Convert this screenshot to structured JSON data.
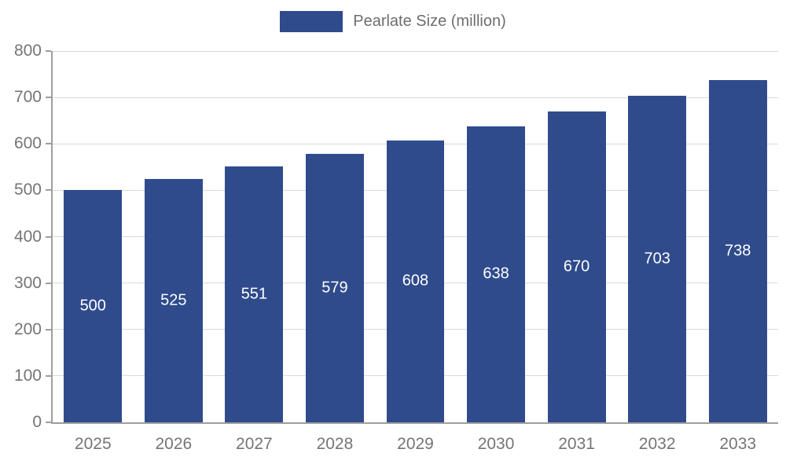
{
  "legend": {
    "label": "Pearlate Size (million)"
  },
  "chart_data": {
    "type": "bar",
    "title": "Pearlate Size (million)",
    "categories": [
      "2025",
      "2026",
      "2027",
      "2028",
      "2029",
      "2030",
      "2031",
      "2032",
      "2033"
    ],
    "values": [
      500,
      525,
      551,
      579,
      608,
      638,
      670,
      703,
      738
    ],
    "xlabel": "",
    "ylabel": "",
    "ylim": [
      0,
      800
    ],
    "ytick_step": 100,
    "grid": true,
    "legend_position": "top",
    "bar_color": "#2f4b8c",
    "bar_label_color": "#ffffff",
    "axis_text_color": "#757575",
    "gridline_color": "#d9d9d9"
  }
}
